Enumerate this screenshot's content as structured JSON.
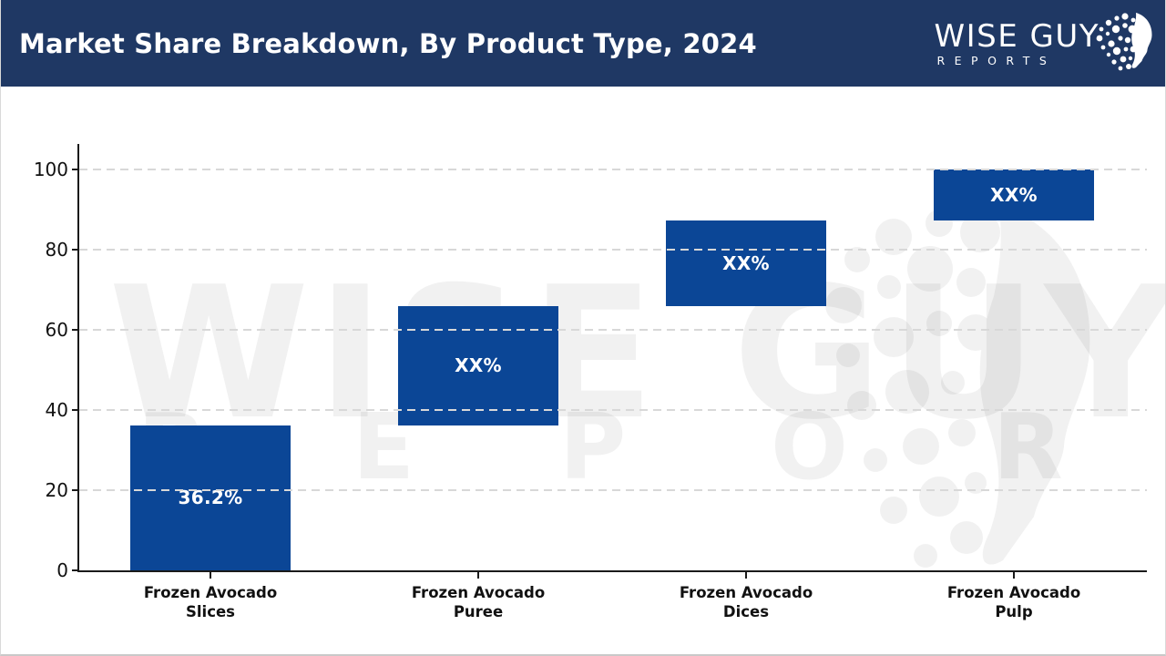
{
  "header": {
    "title": "Market Share Breakdown, By Product Type, 2024",
    "bg_color": "#1F3864",
    "logo": {
      "line1": "WISE GUY",
      "line2": "REPORTS"
    }
  },
  "watermark": {
    "line1": "WISE GUY",
    "line2": "R E P O R T S"
  },
  "chart_data": {
    "type": "bar",
    "subtype": "floating-waterfall",
    "title": "Market Share Breakdown, By Product Type, 2024",
    "categories": [
      "Frozen Avocado Slices",
      "Frozen Avocado Puree",
      "Frozen Avocado Dices",
      "Frozen Avocado Pulp"
    ],
    "segments": [
      {
        "category": "Frozen Avocado Slices",
        "start": 0,
        "end": 36.2,
        "label": "36.2%"
      },
      {
        "category": "Frozen Avocado Puree",
        "start": 36.2,
        "end": 66,
        "label": "XX%"
      },
      {
        "category": "Frozen Avocado Dices",
        "start": 66,
        "end": 87.3,
        "label": "XX%"
      },
      {
        "category": "Frozen Avocado Pulp",
        "start": 87.3,
        "end": 100,
        "label": "XX%"
      }
    ],
    "ylabel": "",
    "xlabel": "",
    "ylim": [
      0,
      100
    ],
    "yticks": [
      0,
      20,
      40,
      60,
      80,
      100
    ],
    "grid": "dashed-horizontal",
    "legend": "none",
    "bar_color": "#0B4696",
    "bar_label_color": "#ffffff",
    "axis_color": "#1a1a1a",
    "grid_color": "#d8d8d8"
  }
}
